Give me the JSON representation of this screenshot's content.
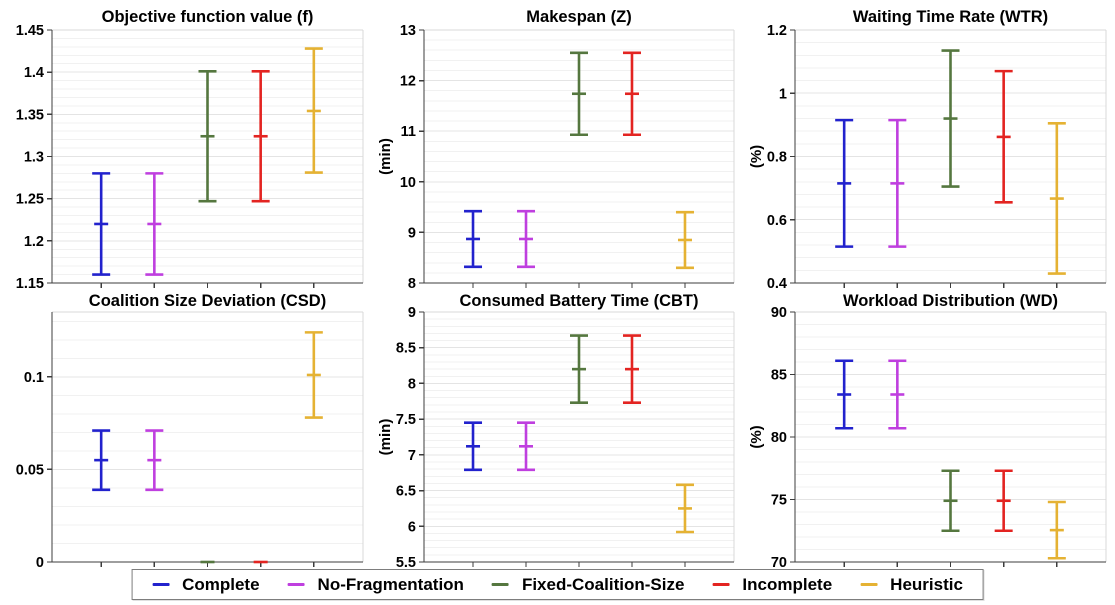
{
  "figure": {
    "background": "#ffffff",
    "axis_color": "#3c3c3c",
    "box_light_color": "#d8d8d8",
    "grid_minor_color": "#f1f1f1",
    "grid_major_color": "#e4e4e4"
  },
  "legend": {
    "position": "bottom-center",
    "items": [
      {
        "label": "Complete",
        "color": "#2222cd"
      },
      {
        "label": "No-Fragmentation",
        "color": "#bf3fdf"
      },
      {
        "label": "Fixed-Coalition-Size",
        "color": "#55773f"
      },
      {
        "label": "Incomplete",
        "color": "#e32421"
      },
      {
        "label": "Heuristic",
        "color": "#e5b233"
      }
    ]
  },
  "chart_data": [
    {
      "type": "errorbar",
      "title": "Objective function value (f)",
      "ylabel": "",
      "ylim": [
        1.15,
        1.45
      ],
      "yticks": [
        1.15,
        1.2,
        1.25,
        1.3,
        1.35,
        1.4,
        1.45
      ],
      "ytick_labels": [
        "1.15",
        "1.2",
        "1.25",
        "1.3",
        "1.35",
        "1.4",
        "1.45"
      ],
      "minor_step": 0.01,
      "grid": true,
      "series": [
        {
          "name": "Complete",
          "mean": 1.22,
          "lo": 1.16,
          "hi": 1.28
        },
        {
          "name": "No-Fragmentation",
          "mean": 1.22,
          "lo": 1.16,
          "hi": 1.28
        },
        {
          "name": "Fixed-Coalition-Size",
          "mean": 1.324,
          "lo": 1.247,
          "hi": 1.401
        },
        {
          "name": "Incomplete",
          "mean": 1.324,
          "lo": 1.247,
          "hi": 1.401
        },
        {
          "name": "Heuristic",
          "mean": 1.354,
          "lo": 1.281,
          "hi": 1.428
        }
      ]
    },
    {
      "type": "errorbar",
      "title": "Makespan (Z)",
      "ylabel": "(min)",
      "ylim": [
        8,
        13
      ],
      "yticks": [
        8,
        9,
        10,
        11,
        12,
        13
      ],
      "ytick_labels": [
        "8",
        "9",
        "10",
        "11",
        "12",
        "13"
      ],
      "minor_step": 0.2,
      "grid": true,
      "series": [
        {
          "name": "Complete",
          "mean": 8.87,
          "lo": 8.32,
          "hi": 9.42
        },
        {
          "name": "No-Fragmentation",
          "mean": 8.87,
          "lo": 8.32,
          "hi": 9.42
        },
        {
          "name": "Fixed-Coalition-Size",
          "mean": 11.74,
          "lo": 10.93,
          "hi": 12.55
        },
        {
          "name": "Incomplete",
          "mean": 11.74,
          "lo": 10.93,
          "hi": 12.55
        },
        {
          "name": "Heuristic",
          "mean": 8.85,
          "lo": 8.3,
          "hi": 9.4
        }
      ]
    },
    {
      "type": "errorbar",
      "title": "Waiting Time Rate (WTR)",
      "ylabel": "(%)",
      "ylim": [
        0.4,
        1.2
      ],
      "yticks": [
        0.4,
        0.6,
        0.8,
        1,
        1.2
      ],
      "ytick_labels": [
        "0.4",
        "0.6",
        "0.8",
        "1",
        "1.2"
      ],
      "minor_step": 0.04,
      "grid": true,
      "series": [
        {
          "name": "Complete",
          "mean": 0.715,
          "lo": 0.515,
          "hi": 0.915
        },
        {
          "name": "No-Fragmentation",
          "mean": 0.715,
          "lo": 0.515,
          "hi": 0.915
        },
        {
          "name": "Fixed-Coalition-Size",
          "mean": 0.92,
          "lo": 0.705,
          "hi": 1.135
        },
        {
          "name": "Incomplete",
          "mean": 0.862,
          "lo": 0.655,
          "hi": 1.07
        },
        {
          "name": "Heuristic",
          "mean": 0.667,
          "lo": 0.43,
          "hi": 0.905
        }
      ]
    },
    {
      "type": "errorbar",
      "title": "Coalition Size Deviation (CSD)",
      "ylabel": "",
      "ylim": [
        0,
        0.135
      ],
      "yticks": [
        0,
        0.05,
        0.1
      ],
      "ytick_labels": [
        "0",
        "0.05",
        "0.1"
      ],
      "minor_step": 0.01,
      "grid": true,
      "series": [
        {
          "name": "Complete",
          "mean": 0.055,
          "lo": 0.039,
          "hi": 0.071
        },
        {
          "name": "No-Fragmentation",
          "mean": 0.055,
          "lo": 0.039,
          "hi": 0.071
        },
        {
          "name": "Fixed-Coalition-Size",
          "mean": 0,
          "lo": 0,
          "hi": 0
        },
        {
          "name": "Incomplete",
          "mean": 0,
          "lo": 0,
          "hi": 0
        },
        {
          "name": "Heuristic",
          "mean": 0.101,
          "lo": 0.078,
          "hi": 0.124
        }
      ]
    },
    {
      "type": "errorbar",
      "title": "Consumed Battery Time (CBT)",
      "ylabel": "(min)",
      "ylim": [
        5.5,
        9
      ],
      "yticks": [
        5.5,
        6,
        6.5,
        7,
        7.5,
        8,
        8.5,
        9
      ],
      "ytick_labels": [
        "5.5",
        "6",
        "6.5",
        "7",
        "7.5",
        "8",
        "8.5",
        "9"
      ],
      "minor_step": 0.1,
      "grid": true,
      "series": [
        {
          "name": "Complete",
          "mean": 7.12,
          "lo": 6.79,
          "hi": 7.45
        },
        {
          "name": "No-Fragmentation",
          "mean": 7.12,
          "lo": 6.79,
          "hi": 7.45
        },
        {
          "name": "Fixed-Coalition-Size",
          "mean": 8.2,
          "lo": 7.73,
          "hi": 8.67
        },
        {
          "name": "Incomplete",
          "mean": 8.2,
          "lo": 7.73,
          "hi": 8.67
        },
        {
          "name": "Heuristic",
          "mean": 6.25,
          "lo": 5.92,
          "hi": 6.58
        }
      ]
    },
    {
      "type": "errorbar",
      "title": "Workload Distribution (WD)",
      "ylabel": "(%)",
      "ylim": [
        70,
        90
      ],
      "yticks": [
        70,
        75,
        80,
        85,
        90
      ],
      "ytick_labels": [
        "70",
        "75",
        "80",
        "85",
        "90"
      ],
      "minor_step": 1,
      "grid": true,
      "series": [
        {
          "name": "Complete",
          "mean": 83.4,
          "lo": 80.7,
          "hi": 86.1
        },
        {
          "name": "No-Fragmentation",
          "mean": 83.4,
          "lo": 80.7,
          "hi": 86.1
        },
        {
          "name": "Fixed-Coalition-Size",
          "mean": 74.9,
          "lo": 72.5,
          "hi": 77.3
        },
        {
          "name": "Incomplete",
          "mean": 74.9,
          "lo": 72.5,
          "hi": 77.3
        },
        {
          "name": "Heuristic",
          "mean": 72.55,
          "lo": 70.3,
          "hi": 74.8
        }
      ]
    }
  ]
}
